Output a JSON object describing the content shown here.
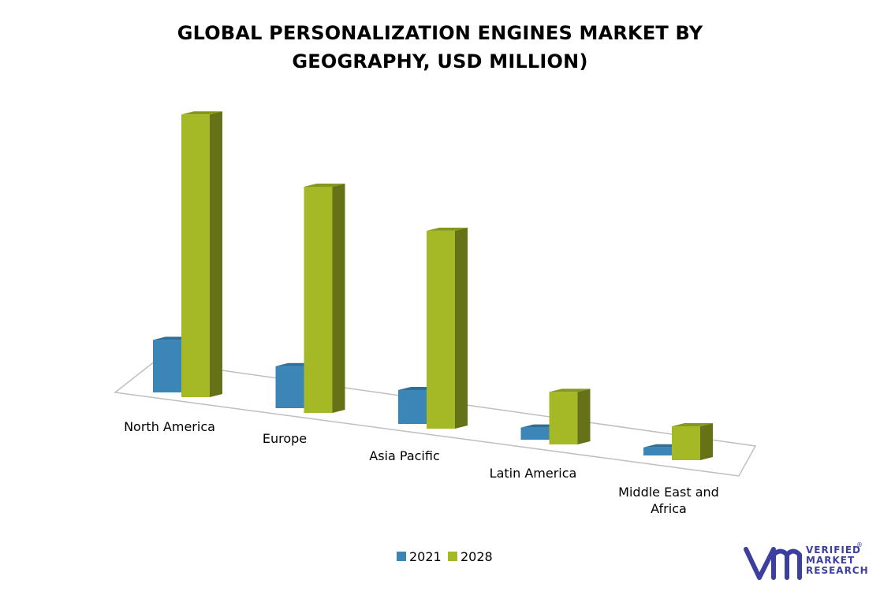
{
  "chart_data": {
    "type": "bar",
    "title_lines": [
      "GLOBAL  PERSONALIZATION ENGINES MARKET BY",
      "GEOGRAPHY, USD MILLION)"
    ],
    "categories": [
      {
        "lines": [
          "North America"
        ]
      },
      {
        "lines": [
          "Europe"
        ]
      },
      {
        "lines": [
          "Asia Pacific"
        ]
      },
      {
        "lines": [
          "Latin America"
        ]
      },
      {
        "lines": [
          "Middle East and",
          "Africa"
        ]
      }
    ],
    "series": [
      {
        "name": "2021",
        "values": [
          65,
          52,
          42,
          15,
          10
        ],
        "color": "#3b86b6"
      },
      {
        "name": "2028",
        "values": [
          350,
          280,
          245,
          65,
          42
        ],
        "color": "#a5b825"
      }
    ],
    "ylim": [
      0,
      360
    ],
    "grid": false,
    "legend_position": "bottom",
    "style": "3d-column"
  },
  "brand": {
    "logo_mark": "VM",
    "logo_words": [
      "VERIFIED",
      "MARKET",
      "RESEARCH"
    ],
    "registered": "®",
    "color": "#3c3fa0"
  }
}
